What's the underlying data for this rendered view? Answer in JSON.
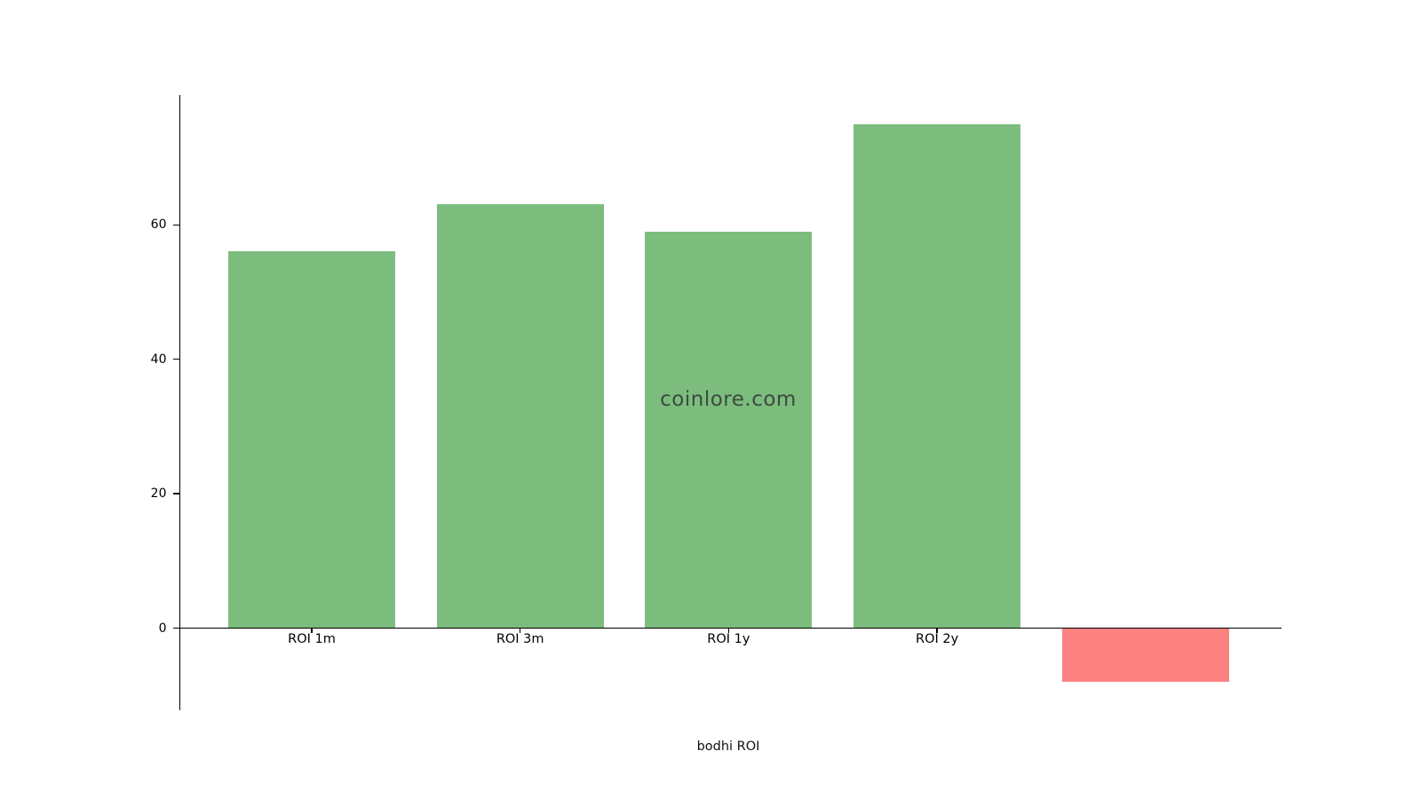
{
  "watermark": {
    "text": "coinlore.com",
    "color": "#3c4a3e"
  },
  "chart_data": {
    "type": "bar",
    "title": "bodhi ROI",
    "xlabel": "bodhi ROI",
    "ylabel": "",
    "categories": [
      "ROI 1m",
      "ROI 3m",
      "ROI 1y",
      "ROI 2y",
      ""
    ],
    "values": [
      56,
      63,
      59,
      75,
      -8
    ],
    "series": [
      {
        "name": "bodhi ROI",
        "values": [
          56,
          63,
          59,
          75,
          -8
        ]
      }
    ],
    "yticks": [
      0,
      20,
      40,
      60
    ],
    "ylim": [
      -12.2,
      79.3
    ],
    "grid": false,
    "legend": "none",
    "positive_color": "#7cbd7e",
    "negative_color": "#fc8181",
    "axis_color": "#000000",
    "tick_text_color": "#000000"
  }
}
